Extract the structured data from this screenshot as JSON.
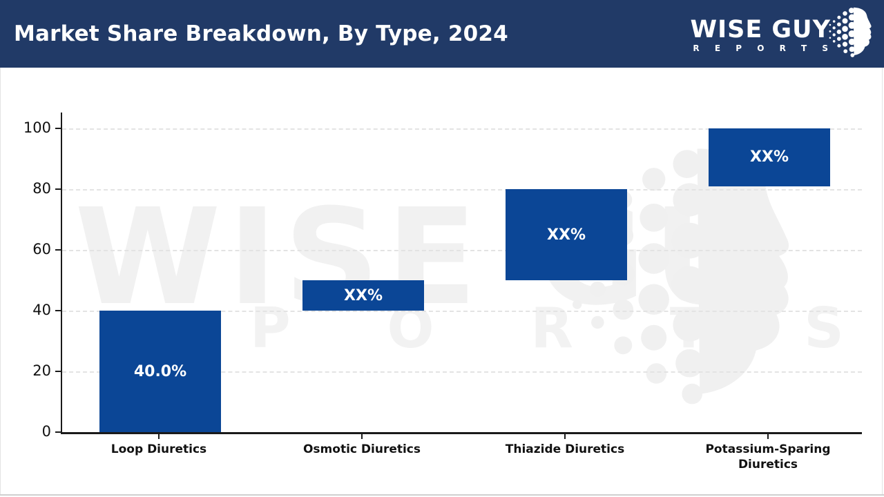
{
  "header": {
    "title": "Market Share Breakdown, By Type, 2024",
    "bg_color": "#213a67",
    "logo": {
      "line1": "WISE GUY",
      "line2": "R E P O R T S"
    }
  },
  "watermark": {
    "line1": "WISE GU",
    "line2": "P O R T S"
  },
  "chart_data": {
    "type": "bar",
    "variant": "floating-segment-waterfall",
    "title": "Market Share Breakdown, By Type, 2024",
    "categories": [
      "Loop Diuretics",
      "Osmotic Diuretics",
      "Thiazide Diuretics",
      "Potassium-Sparing Diuretics"
    ],
    "segments": [
      {
        "category": "Loop Diuretics",
        "start": 0,
        "end": 40,
        "label": "40.0%"
      },
      {
        "category": "Osmotic Diuretics",
        "start": 40,
        "end": 50,
        "label": "XX%"
      },
      {
        "category": "Thiazide Diuretics",
        "start": 50,
        "end": 80,
        "label": "XX%"
      },
      {
        "category": "Potassium-Sparing Diuretics",
        "start": 81,
        "end": 100,
        "label": "XX%"
      }
    ],
    "yticks": [
      0,
      20,
      40,
      60,
      80,
      100
    ],
    "ylim": [
      0,
      105
    ],
    "xlabel": "",
    "ylabel": "",
    "bar_color": "#0b4696",
    "bar_label_color": "#ffffff",
    "axis_color": "#1a1a1a",
    "grid": "horizontal-dashed",
    "legend": "none"
  }
}
